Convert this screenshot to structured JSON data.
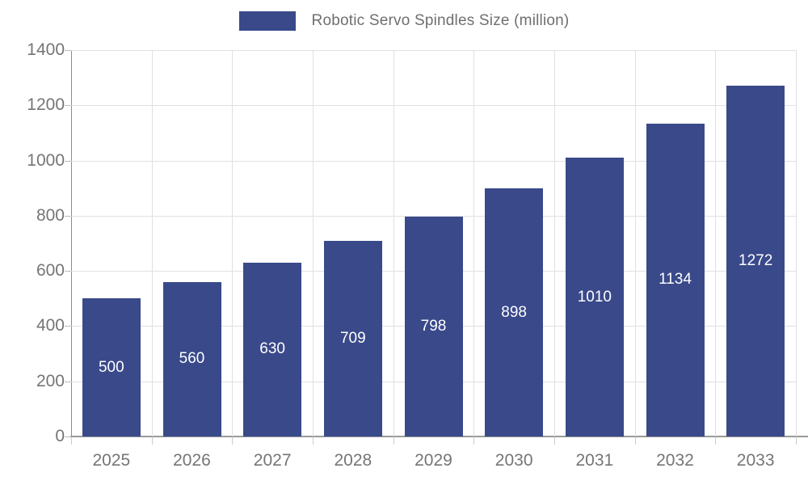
{
  "chart_data": {
    "type": "bar",
    "title": "Robotic Servo Spindles Size (million)",
    "legend_position": "top",
    "categories": [
      "2025",
      "2026",
      "2027",
      "2028",
      "2029",
      "2030",
      "2031",
      "2032",
      "2033"
    ],
    "values": [
      500,
      560,
      630,
      709,
      798,
      898,
      1010,
      1134,
      1272
    ],
    "xlabel": "",
    "ylabel": "",
    "ylim": [
      0,
      1400
    ],
    "yticks": [
      0,
      200,
      400,
      600,
      800,
      1000,
      1200,
      1400
    ],
    "grid": true,
    "bar_color": "#39498A",
    "value_label_color": "#ffffff",
    "axis_label_color": "#757575",
    "gridline_color": "#e0e0e0"
  }
}
